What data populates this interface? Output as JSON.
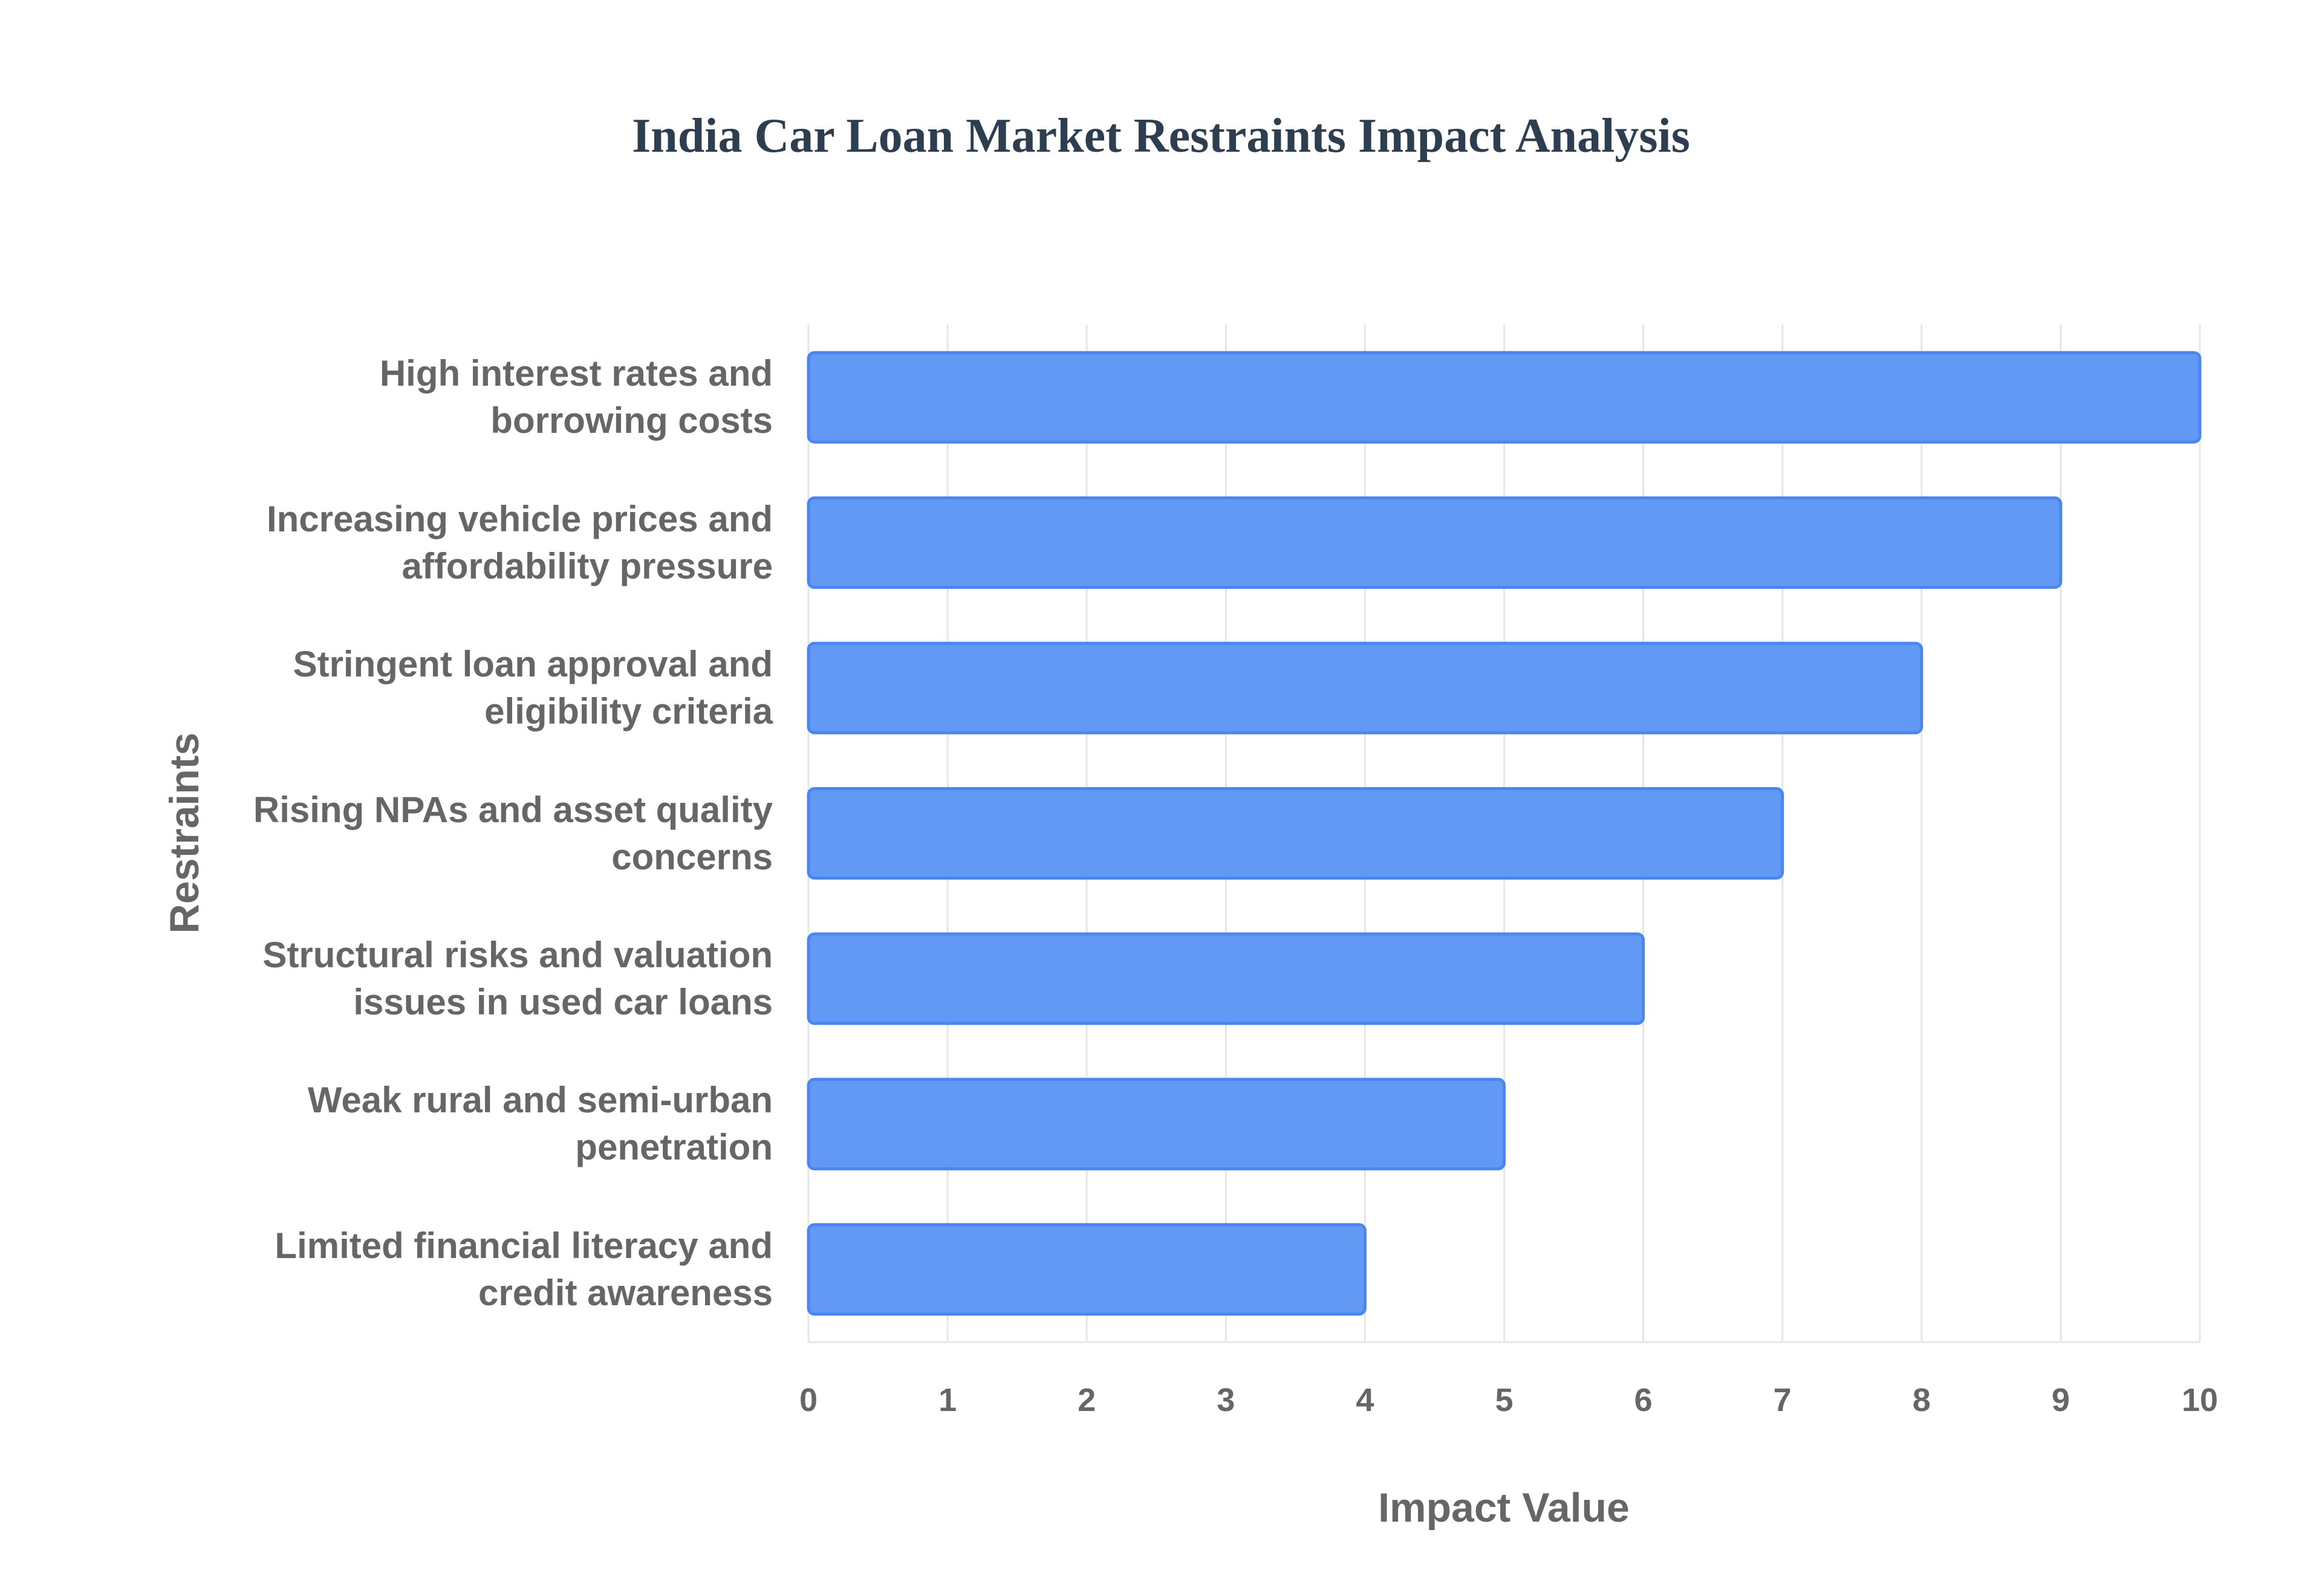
{
  "chart_data": {
    "type": "bar",
    "orientation": "horizontal",
    "title": "India Car Loan Market Restraints Impact Analysis",
    "x_label": "Impact Value",
    "y_label": "Restraints",
    "categories": [
      "High interest rates and borrowing costs",
      "Increasing vehicle prices and affordability pressure",
      "Stringent loan approval and eligibility criteria",
      "Rising NPAs and asset quality concerns",
      "Structural risks and valuation issues in used car loans",
      "Weak rural and semi-urban penetration",
      "Limited financial literacy and credit awareness"
    ],
    "values": [
      10,
      9,
      8,
      7,
      6,
      5,
      4
    ],
    "color": "#6199f5",
    "xlim": [
      0,
      10
    ],
    "xticks": [
      0,
      1,
      2,
      3,
      4,
      5,
      6,
      7,
      8,
      9,
      10
    ],
    "grid": true
  }
}
